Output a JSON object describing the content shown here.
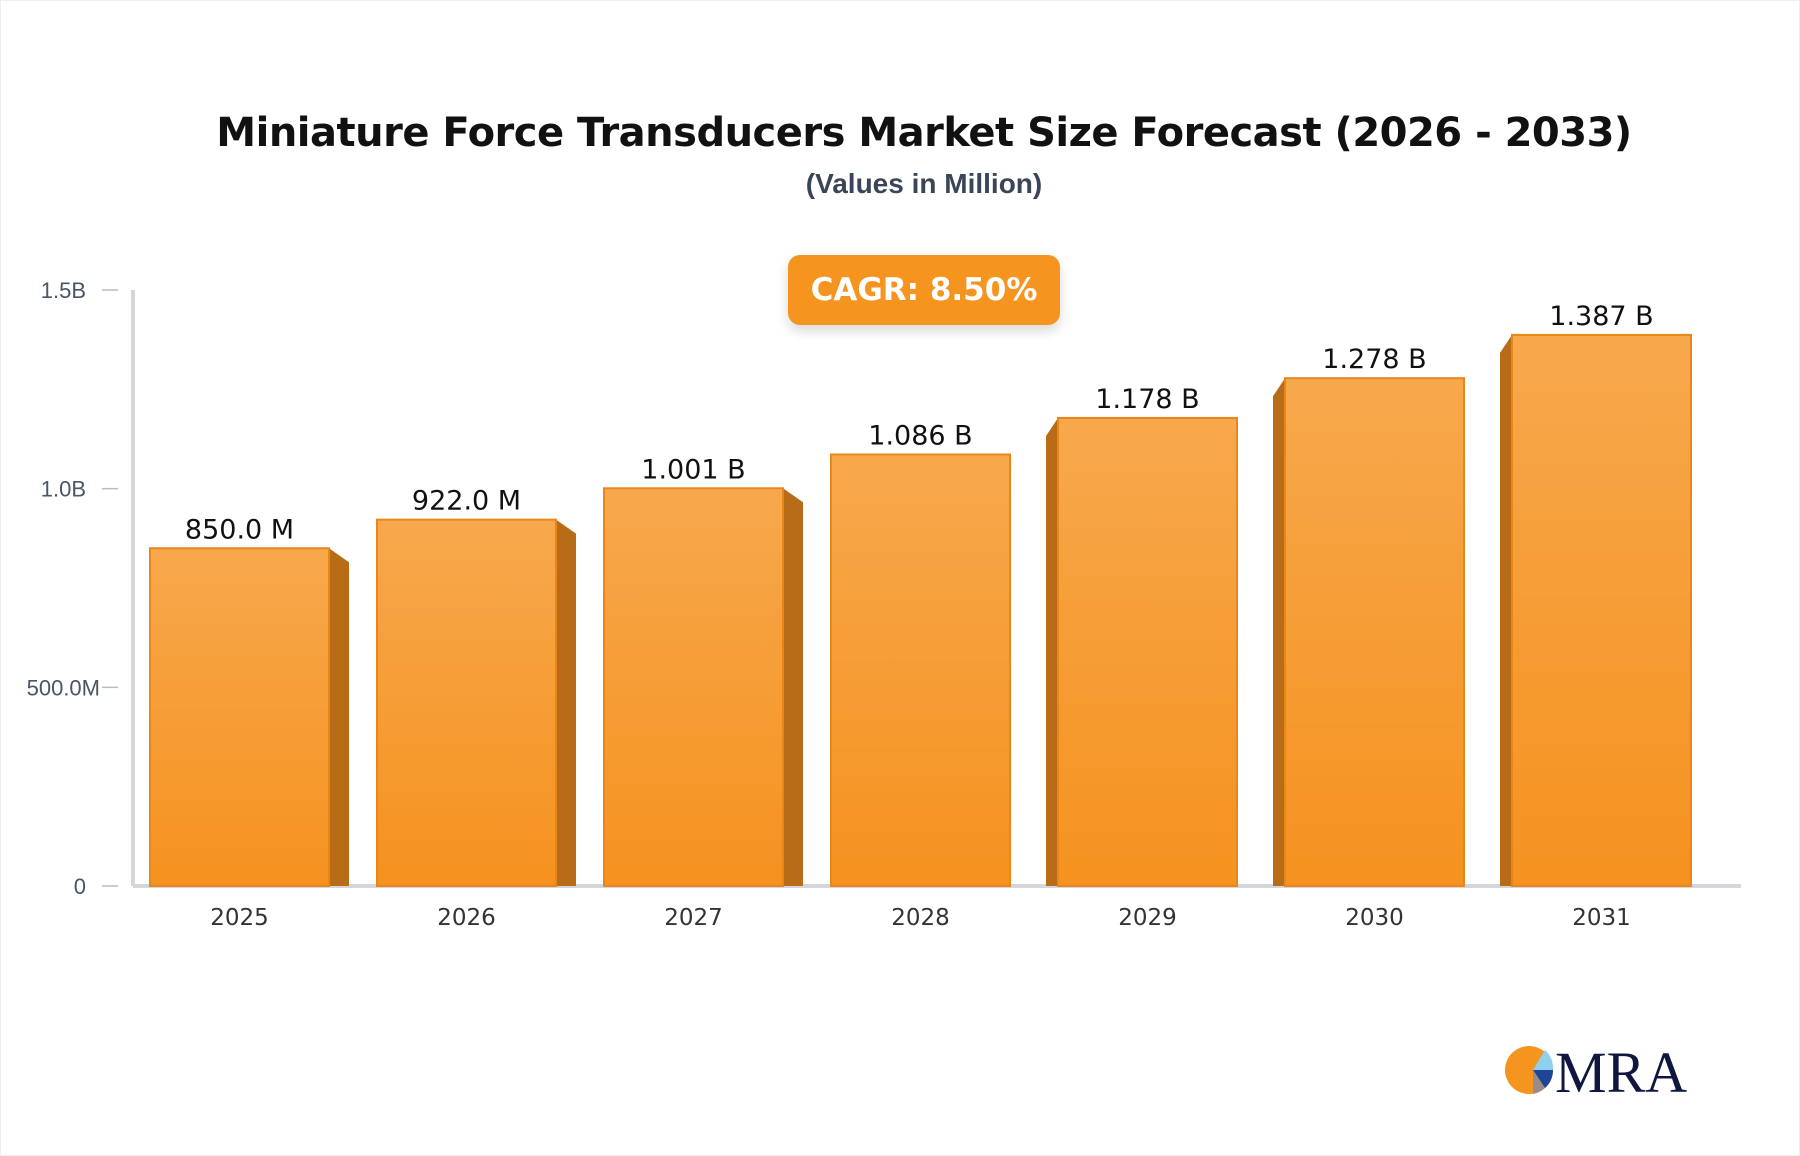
{
  "chart_data": {
    "type": "bar",
    "title": "Miniature Force Transducers Market Size Forecast (2026 - 2033)",
    "subtitle": "(Values in Million)",
    "annotation": "CAGR: 8.50%",
    "categories": [
      "2025",
      "2026",
      "2027",
      "2028",
      "2029",
      "2030",
      "2031"
    ],
    "values": [
      850.0,
      922.0,
      1001,
      1086,
      1178,
      1278,
      1387
    ],
    "value_unit": "Million",
    "data_labels": [
      "850.0 M",
      "922.0 M",
      "1.001 B",
      "1.086 B",
      "1.178 B",
      "1.278 B",
      "1.387 B"
    ],
    "yticks": [
      0,
      500,
      1000,
      1500
    ],
    "ytick_labels": [
      "0",
      "500.0M",
      "1.0B",
      "1.5B"
    ],
    "ylim": [
      0,
      1500
    ],
    "xlabel": "",
    "ylabel": "",
    "grid": false,
    "colors": {
      "bar": "#f5941f",
      "bar_side": "#b86c17",
      "axis": "#d4d6dc"
    }
  },
  "logo": {
    "text": "MRA"
  }
}
